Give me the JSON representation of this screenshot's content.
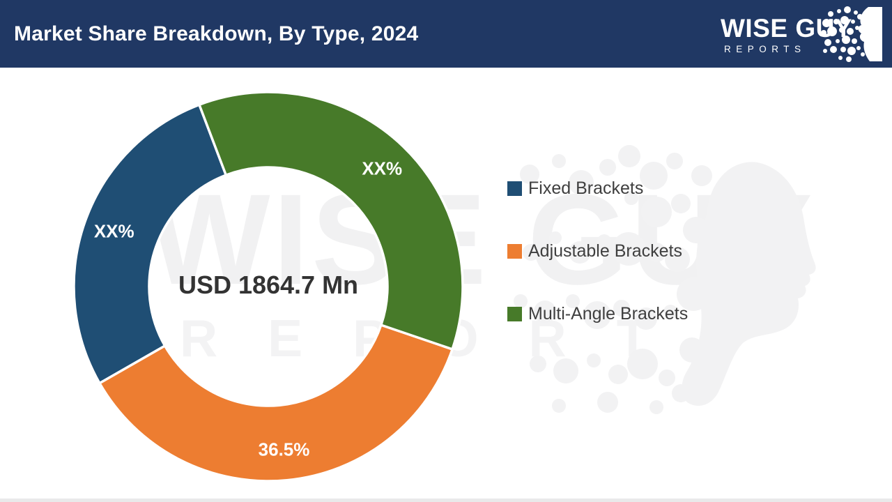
{
  "header": {
    "title": "Market Share Breakdown, By Type, 2024",
    "logo": {
      "line1": "WISE GUY",
      "line2": "REPORTS"
    }
  },
  "watermark": {
    "line1": "WISE GUY",
    "line2": "REPORTS"
  },
  "chart_data": {
    "type": "pie",
    "subtype": "donut",
    "title": "Market Share Breakdown, By Type, 2024",
    "center_label": "USD 1864.7 Mn",
    "start_angle_deg": 110.8,
    "direction": "counterclockwise",
    "legend_position": "right",
    "slices": [
      {
        "name": "Fixed Brackets",
        "value_pct": 27.5,
        "label": "XX%",
        "color": "#1F4E74"
      },
      {
        "name": "Adjustable Brackets",
        "value_pct": 36.5,
        "label": "36.5%",
        "color": "#ED7D31"
      },
      {
        "name": "Multi-Angle Brackets",
        "value_pct": 36.0,
        "label": "XX%",
        "color": "#477A29"
      }
    ]
  },
  "colors": {
    "header_bg": "#203864",
    "footer_bar": "#e9e9ea",
    "watermark": "#f2f2f3",
    "slice_gap_stroke": "#ffffff",
    "center_text": "#333333",
    "legend_text": "#3f3f3f"
  }
}
